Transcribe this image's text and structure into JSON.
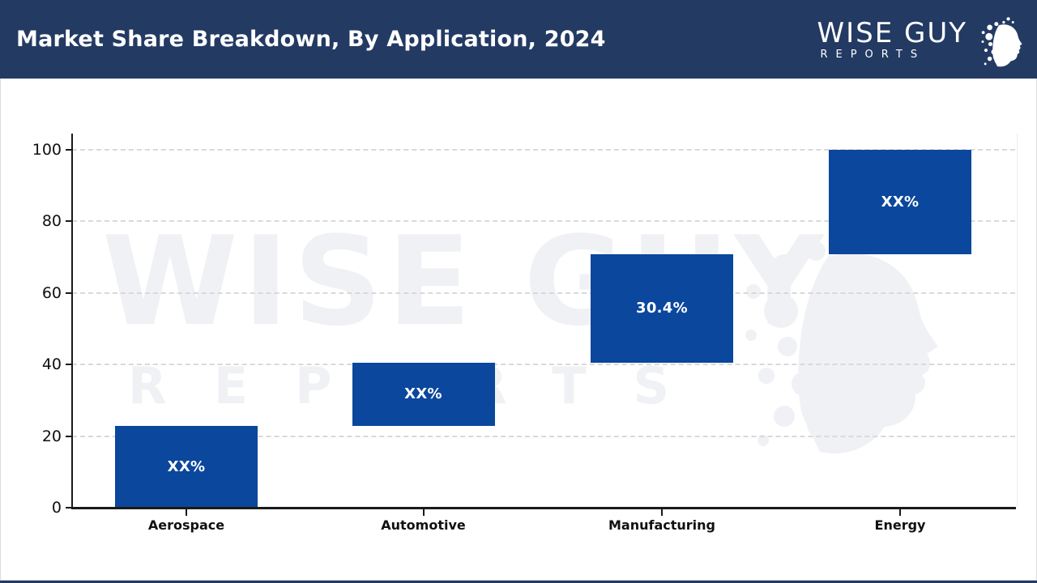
{
  "header": {
    "title": "Market Share Breakdown, By Application, 2024",
    "background_color": "#233a63",
    "logo": {
      "line1": "WISE GUY",
      "line2": "REPORTS"
    }
  },
  "watermark": {
    "line1": "WISE GUY",
    "line2": "REPORTS"
  },
  "chart_data": {
    "type": "bar",
    "subtype": "waterfall",
    "title": "Market Share Breakdown, By Application, 2024",
    "categories": [
      "Aerospace",
      "Automotive",
      "Manufacturing",
      "Energy"
    ],
    "segments": [
      {
        "category": "Aerospace",
        "start": 0,
        "end": 22.9,
        "label": "XX%"
      },
      {
        "category": "Automotive",
        "start": 22.9,
        "end": 40.6,
        "label": "XX%"
      },
      {
        "category": "Manufacturing",
        "start": 40.6,
        "end": 70.9,
        "label": "30.4%"
      },
      {
        "category": "Energy",
        "start": 70.9,
        "end": 100,
        "label": "XX%"
      }
    ],
    "xlabel": "",
    "ylabel": "",
    "ylim": [
      0,
      100
    ],
    "yticks": [
      0,
      20,
      40,
      60,
      80,
      100
    ],
    "grid": "horizontal-dashed",
    "legend": "none",
    "bar_color": "#0b479c",
    "bar_label_color": "#ffffff",
    "grid_color": "#d9d9d9",
    "axis_color": "#1a1a1a"
  }
}
